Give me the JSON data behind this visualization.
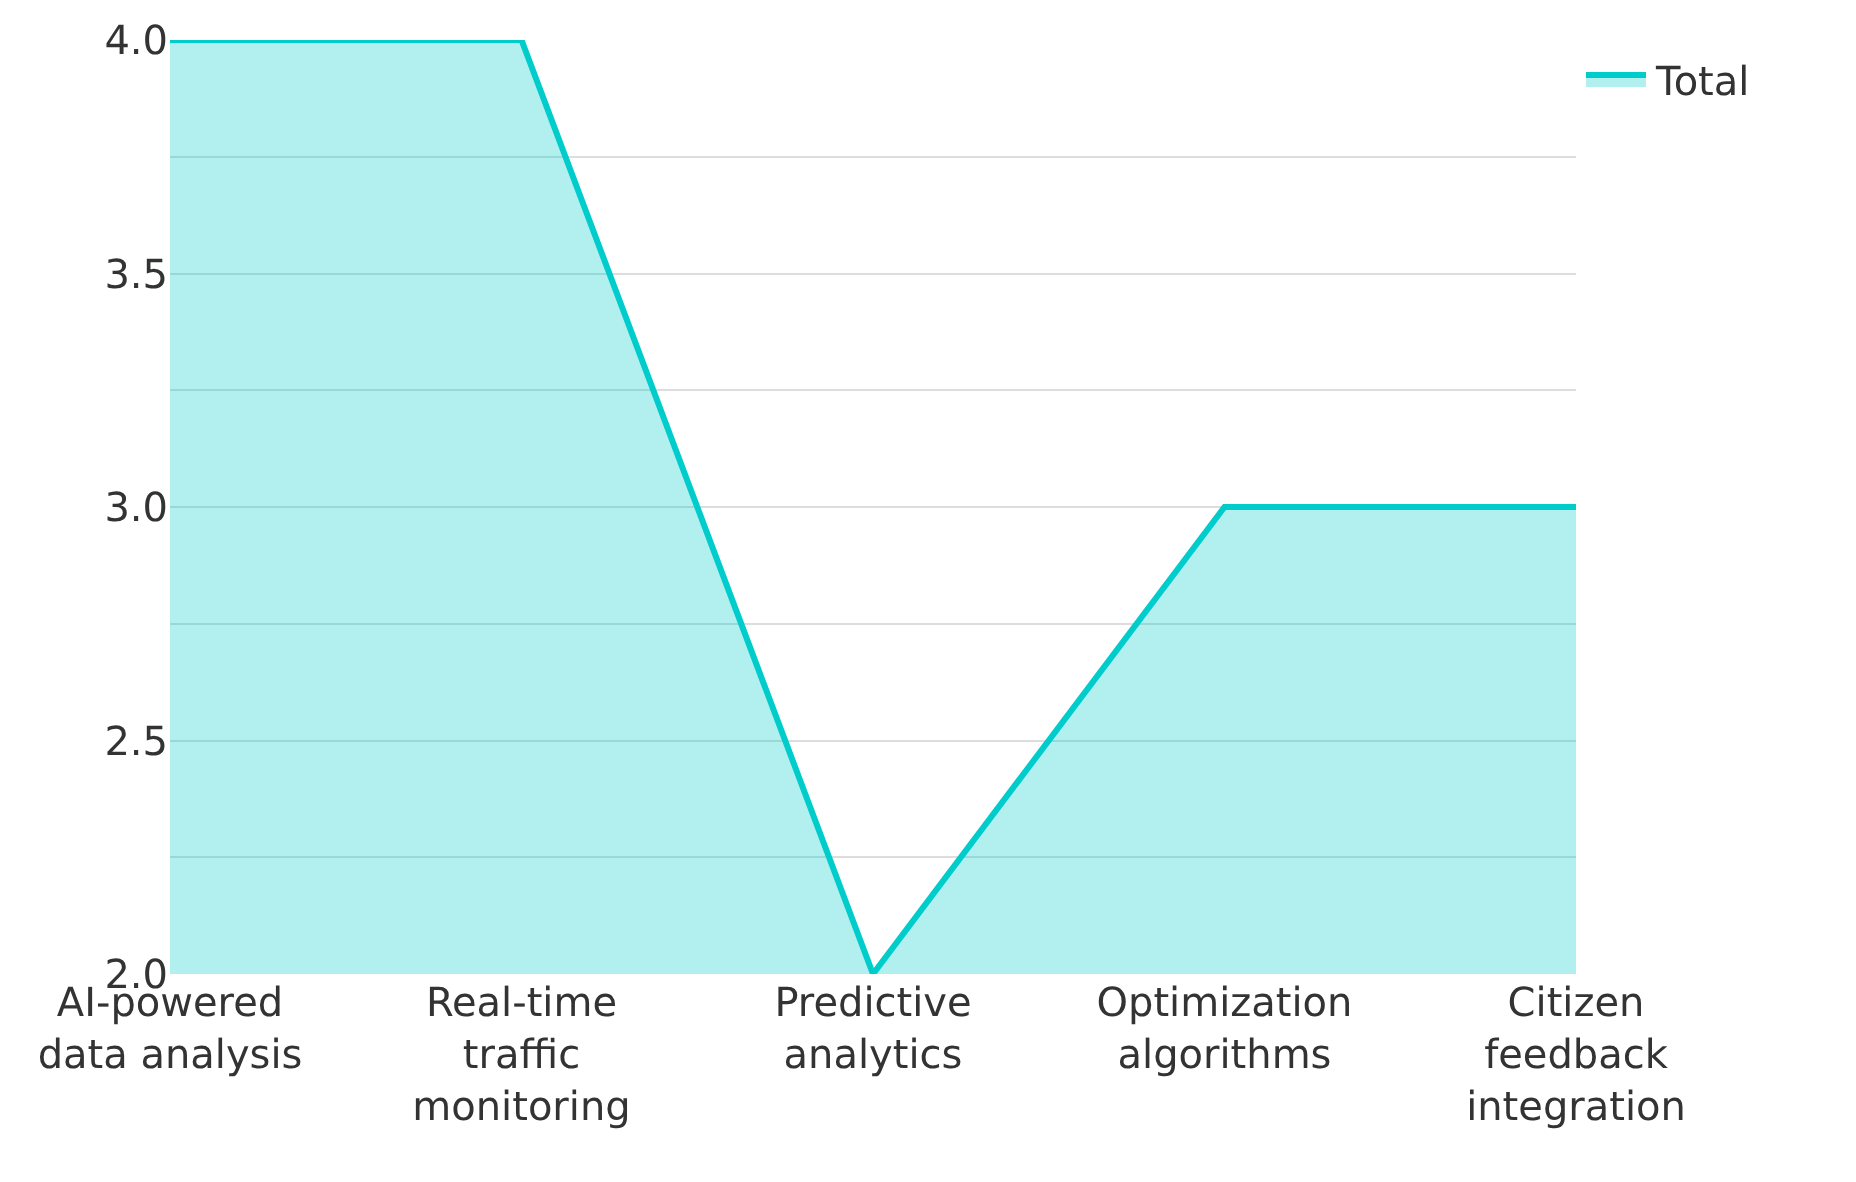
{
  "chart_data": {
    "type": "area",
    "categories": [
      "AI-powered data analysis",
      "Real-time traffic monitoring",
      "Predictive analytics",
      "Optimization algorithms",
      "Citizen feedback integration"
    ],
    "series": [
      {
        "name": "Total",
        "color": "#00cccc",
        "values": [
          4,
          4,
          2,
          3,
          3
        ]
      }
    ],
    "ylim": [
      2,
      4
    ],
    "yticks": [
      {
        "value": 2,
        "label": "2.0"
      },
      {
        "value": 2.25,
        "label": null
      },
      {
        "value": 2.5,
        "label": "2.5"
      },
      {
        "value": 2.75,
        "label": null
      },
      {
        "value": 3,
        "label": "3.0"
      },
      {
        "value": 3.25,
        "label": null
      },
      {
        "value": 3.5,
        "label": "3.5"
      },
      {
        "value": 3.75,
        "label": null
      },
      {
        "value": 4,
        "label": "4.0"
      }
    ],
    "grid": "y",
    "legend": "top right",
    "marker": "none",
    "line_style": "solid"
  }
}
